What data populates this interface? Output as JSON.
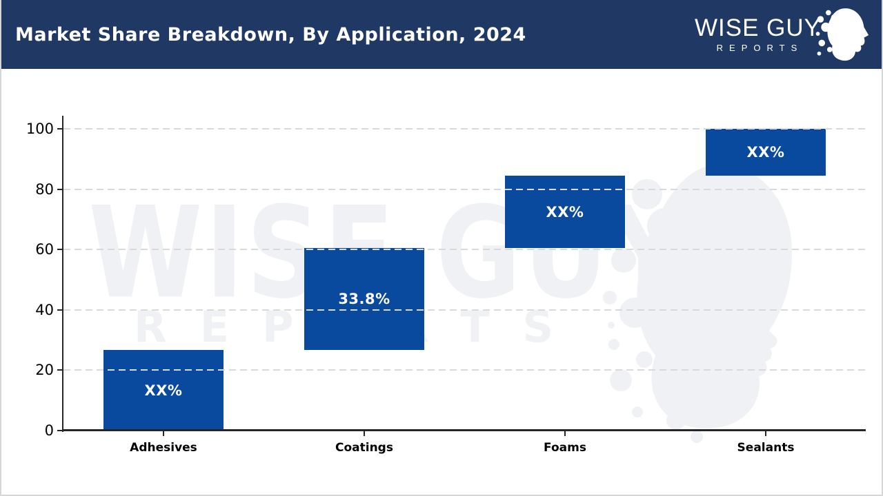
{
  "header": {
    "title": "Market Share Breakdown, By Application, 2024",
    "logo": {
      "title": "WISE GUY",
      "subtitle": "REPORTS"
    }
  },
  "watermark": {
    "wordmark": "WISE GUY",
    "subtitle": "REPORTS"
  },
  "chart_data": {
    "type": "bar",
    "variant": "waterfall",
    "title": "Market Share Breakdown, By Application, 2024",
    "categories": [
      "Adhesives",
      "Coatings",
      "Foams",
      "Sealants"
    ],
    "series": [
      {
        "name": "Market share (%)",
        "segments": [
          {
            "category": "Adhesives",
            "start": 0,
            "end": 26.7,
            "label": "XX%"
          },
          {
            "category": "Coatings",
            "start": 26.7,
            "end": 60.5,
            "label": "33.8%"
          },
          {
            "category": "Foams",
            "start": 60.5,
            "end": 84.5,
            "label": "XX%"
          },
          {
            "category": "Sealants",
            "start": 84.5,
            "end": 100,
            "label": "XX%"
          }
        ]
      }
    ],
    "xlabel": "",
    "ylabel": "",
    "ylim": [
      0,
      105
    ],
    "yticks": [
      0,
      20,
      40,
      60,
      80,
      100
    ],
    "grid": "horizontal-dashed",
    "legend": "none",
    "bar_color": "#0a4a9e",
    "bar_label_color": "#ffffff"
  },
  "colors": {
    "header_bg": "#1f3864",
    "header_text": "#ffffff",
    "axis": "#262626",
    "grid": "#d9d9d9",
    "tick_text": "#000000",
    "watermark": "#f0f1f4",
    "page_border": "#d6d6d6"
  }
}
